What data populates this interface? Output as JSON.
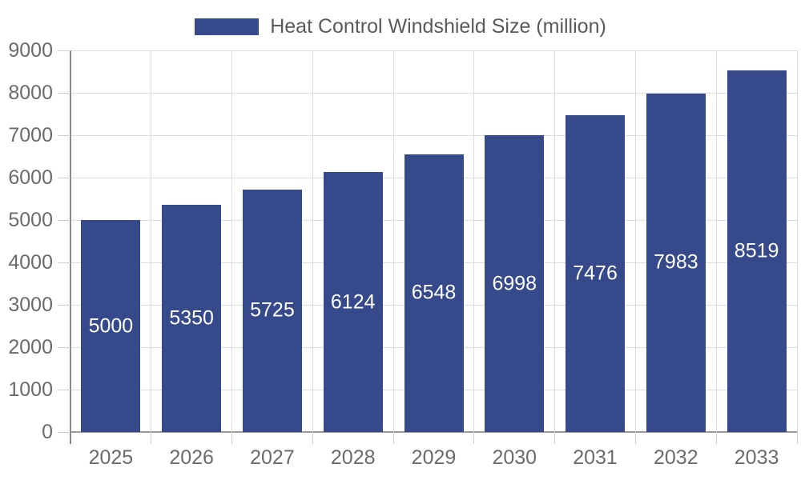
{
  "chart_data": {
    "type": "bar",
    "legend_label": "Heat Control Windshield Size (million)",
    "categories": [
      "2025",
      "2026",
      "2027",
      "2028",
      "2029",
      "2030",
      "2031",
      "2032",
      "2033"
    ],
    "values": [
      5000,
      5350,
      5725,
      6124,
      6548,
      6998,
      7476,
      7983,
      8519
    ],
    "xlabel": "",
    "ylabel": "",
    "ylim": [
      0,
      9000
    ],
    "y_ticks": [
      0,
      1000,
      2000,
      3000,
      4000,
      5000,
      6000,
      7000,
      8000,
      9000
    ],
    "grid": true,
    "legend_position": "top-center",
    "value_label_position": "inside-center",
    "colors": {
      "bar": "#36498A",
      "value_label": "#FFFFFF",
      "axis_line": "#888888",
      "zero_line": "#9A9A9A",
      "gridline": "#DCDCDC",
      "tick": "#CFCFCF",
      "tick_label": "#6B6B6B",
      "legend_text": "#5A5A5A",
      "background": "#FFFFFF"
    }
  }
}
